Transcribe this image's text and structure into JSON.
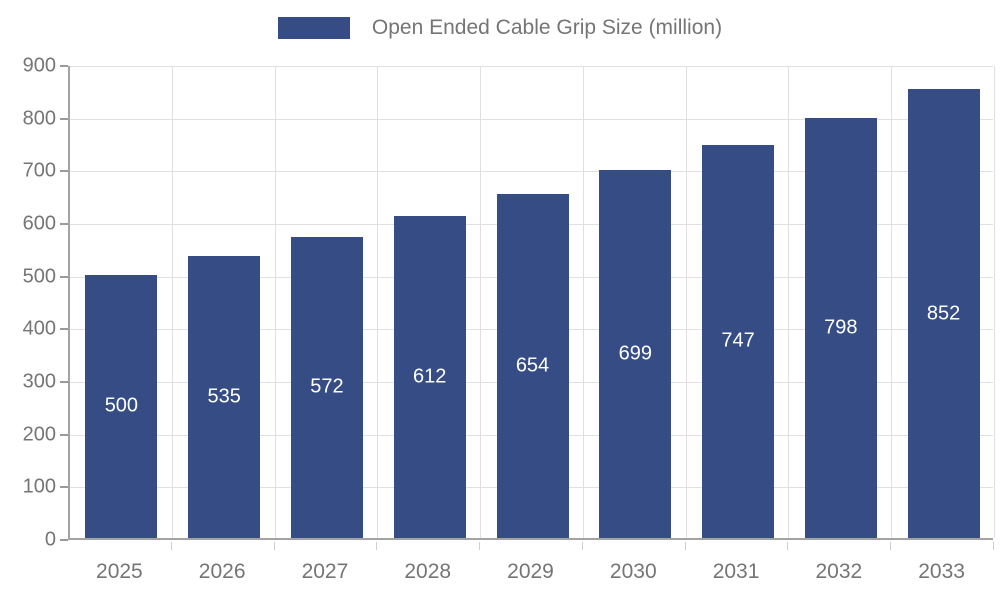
{
  "legend": {
    "label": "Open Ended Cable Grip Size (million)"
  },
  "chart_data": {
    "type": "bar",
    "title": "Open Ended Cable Grip Size (million)",
    "categories": [
      "2025",
      "2026",
      "2027",
      "2028",
      "2029",
      "2030",
      "2031",
      "2032",
      "2033"
    ],
    "values": [
      500,
      535,
      572,
      612,
      654,
      699,
      747,
      798,
      852
    ],
    "value_labels": [
      "500",
      "535",
      "572",
      "612",
      "654",
      "699",
      "747",
      "798",
      "852"
    ],
    "xlabel": "",
    "ylabel": "",
    "ylim": [
      0,
      900
    ],
    "ytick_step": 100,
    "ytick_labels": [
      "0",
      "100",
      "200",
      "300",
      "400",
      "500",
      "600",
      "700",
      "800",
      "900"
    ],
    "grid": "both",
    "legend_position": "top",
    "value_label_position": "center-of-bar"
  },
  "colors": {
    "bar": "#364c84",
    "grid": "#e0e0e0",
    "axis_line": "#a3a3a3",
    "axis_text": "#757575",
    "value_text": "#ffffff"
  }
}
